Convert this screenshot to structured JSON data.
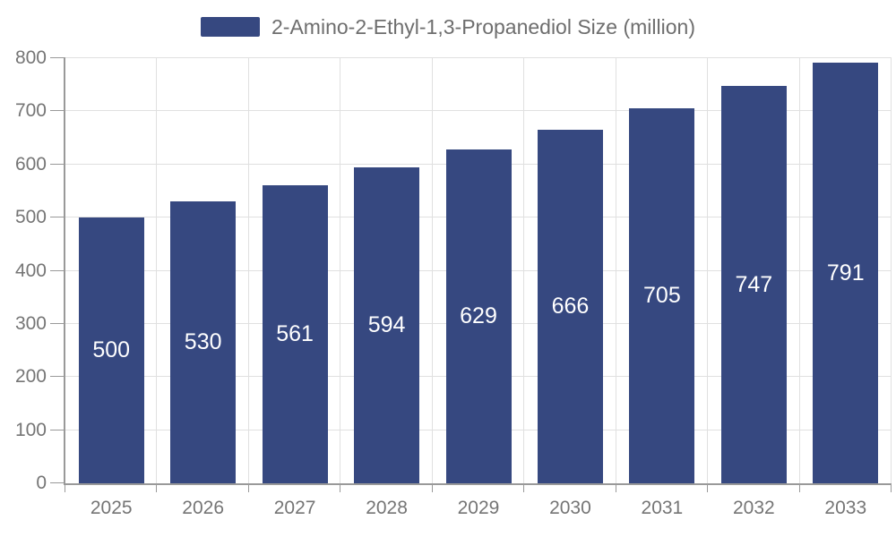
{
  "legend": {
    "label": "2-Amino-2-Ethyl-1,3-Propanediol Size (million)"
  },
  "colors": {
    "bar": "#364880",
    "axis_line": "#999999",
    "tick": "#999999",
    "gridline": "#e0e0e0",
    "axis_label_text": "#757575",
    "legend_text": "#6e6e6e",
    "bar_label_text": "#ffffff",
    "background": "#ffffff"
  },
  "chart_data": {
    "type": "bar",
    "title": "",
    "xlabel": "",
    "ylabel": "",
    "categories": [
      "2025",
      "2026",
      "2027",
      "2028",
      "2029",
      "2030",
      "2031",
      "2032",
      "2033"
    ],
    "series": [
      {
        "name": "2-Amino-2-Ethyl-1,3-Propanediol Size (million)",
        "values": [
          500,
          530,
          561,
          594,
          629,
          666,
          705,
          747,
          791
        ]
      }
    ],
    "ylim": [
      0,
      800
    ],
    "yticks": [
      0,
      100,
      200,
      300,
      400,
      500,
      600,
      700,
      800
    ],
    "grid": true,
    "legend_position": "top-center",
    "value_labels": "inside-center"
  }
}
